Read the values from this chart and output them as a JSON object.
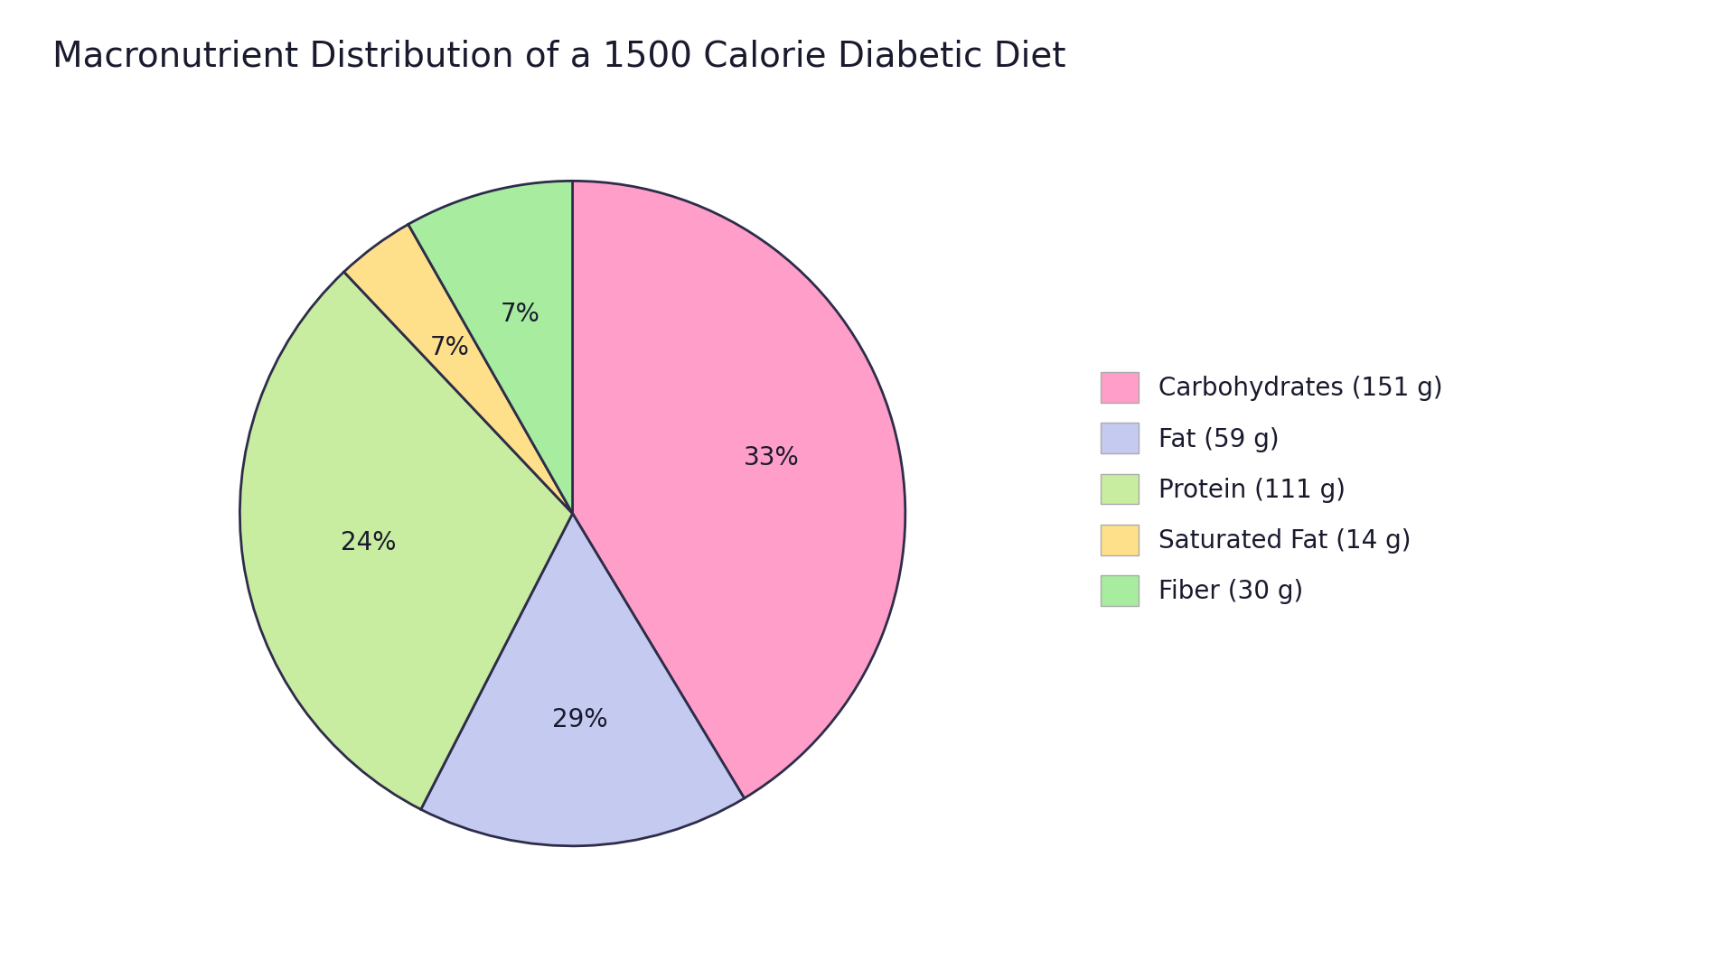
{
  "title": "Macronutrient Distribution of a 1500 Calorie Diabetic Diet",
  "segments": [
    {
      "label": "Carbohydrates (151 g)",
      "grams": 151,
      "color": "#FF9EC8",
      "pct_label": "33%"
    },
    {
      "label": "Fat (59 g)",
      "grams": 59,
      "color": "#C5CAF0",
      "pct_label": "29%"
    },
    {
      "label": "Protein (111 g)",
      "grams": 111,
      "color": "#C8ECA0",
      "pct_label": "24%"
    },
    {
      "label": "Saturated Fat (14 g)",
      "grams": 14,
      "color": "#FFE08A",
      "pct_label": "7%"
    },
    {
      "label": "Fiber (30 g)",
      "grams": 30,
      "color": "#A8ECA0",
      "pct_label": "7%"
    }
  ],
  "edge_color": "#2d2d4a",
  "edge_linewidth": 2.0,
  "background_color": "#ffffff",
  "title_fontsize": 28,
  "label_fontsize": 20,
  "legend_fontsize": 20,
  "startangle": 90
}
